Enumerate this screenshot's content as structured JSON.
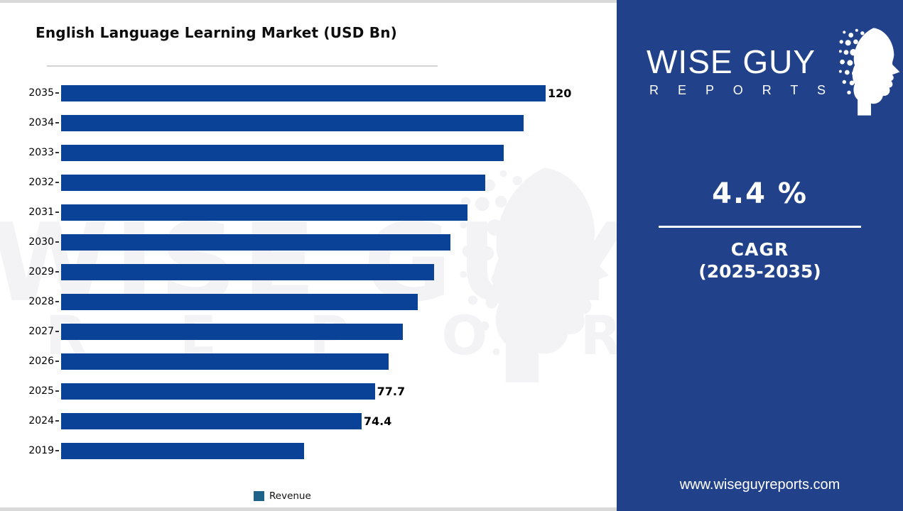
{
  "chart": {
    "title": "English Language Learning Market (USD Bn)"
  },
  "chart_data": {
    "type": "bar",
    "orientation": "horizontal",
    "title": "English Language Learning Market (USD Bn)",
    "xlabel": "",
    "ylabel": "",
    "xlim": [
      0,
      125
    ],
    "grid": false,
    "legend_label": "Revenue",
    "legend_position": "bottom-center",
    "bar_color": "#0a4297",
    "legend_swatch_color": "#1f6488",
    "categories": [
      "2035",
      "2034",
      "2033",
      "2032",
      "2031",
      "2030",
      "2029",
      "2028",
      "2027",
      "2026",
      "2025",
      "2024",
      "2019"
    ],
    "values": [
      120,
      114.5,
      109.7,
      105.0,
      100.6,
      96.4,
      92.3,
      88.4,
      84.7,
      81.1,
      77.7,
      74.4,
      60.2
    ],
    "value_labels": [
      "120",
      "",
      "",
      "",
      "",
      "",
      "",
      "",
      "",
      "",
      "77.7",
      "74.4",
      ""
    ]
  },
  "panel": {
    "bg_color": "#21428a",
    "logo_title": "WISE GUY",
    "logo_subtitle": "R E P O R T S",
    "cagr_value": "4.4 %",
    "cagr_label": "CAGR",
    "cagr_range": "(2025-2035)",
    "website": "www.wiseguyreports.com"
  },
  "watermark": {
    "line1": "WISE GUY",
    "line2": "R E P O R T S"
  }
}
